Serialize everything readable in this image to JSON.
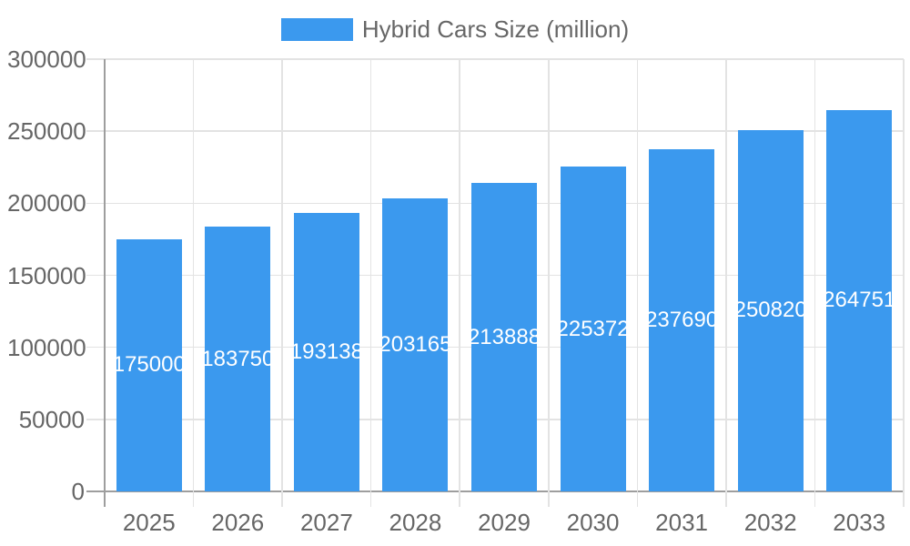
{
  "chart_data": {
    "type": "bar",
    "title": "",
    "legend": {
      "label": "Hybrid Cars Size (million)",
      "position": "top"
    },
    "categories": [
      "2025",
      "2026",
      "2027",
      "2028",
      "2029",
      "2030",
      "2031",
      "2032",
      "2033"
    ],
    "values": [
      175000,
      183750,
      193138,
      203165,
      213888,
      225372,
      237690,
      250820,
      264751
    ],
    "bar_labels": [
      "175000",
      "183750",
      "193138",
      "203165",
      "213888",
      "225372",
      "237690",
      "250820",
      "264751"
    ],
    "xlabel": "",
    "ylabel": "",
    "ylim": [
      0,
      300000
    ],
    "ytick_values": [
      0,
      50000,
      100000,
      150000,
      200000,
      250000,
      300000
    ],
    "ytick_labels": [
      "0",
      "50000",
      "100000",
      "150000",
      "200000",
      "250000",
      "300000"
    ],
    "grid": true,
    "legend_position": "top",
    "colors": {
      "bar": "#3b99ee",
      "bar_label_text": "#ffffff",
      "axis_text": "#666666",
      "grid_line": "#e3e3e3",
      "axis_line": "#9e9e9e",
      "background": "#ffffff"
    }
  }
}
